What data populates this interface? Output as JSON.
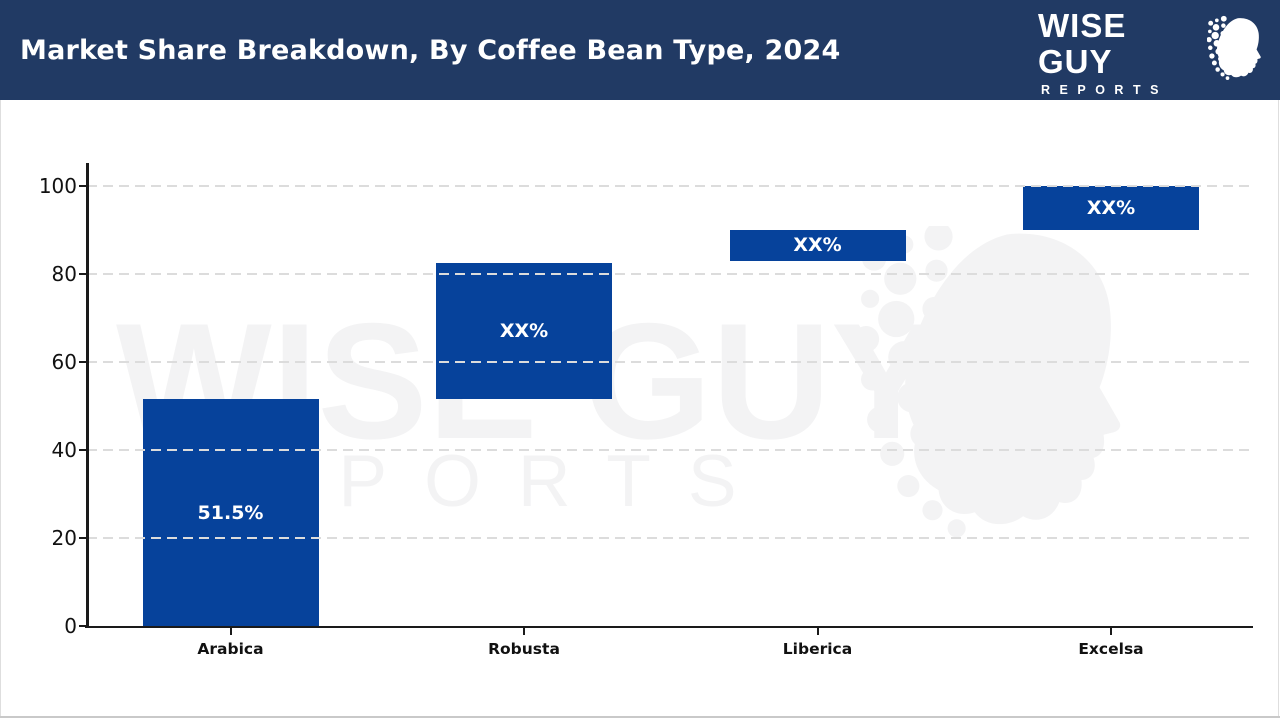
{
  "header": {
    "title": "Market Share Breakdown, By Coffee Bean Type, 2024",
    "logo_line1": "WISE GUY",
    "logo_line2": "REPORTS",
    "background_color": "#213A64"
  },
  "watermark": {
    "line1": "WISE GUY",
    "line2": "REPORTS"
  },
  "chart_data": {
    "type": "bar",
    "variant": "waterfall",
    "title": "Market Share Breakdown, By Coffee Bean Type, 2024",
    "categories": [
      "Arabica",
      "Robusta",
      "Liberica",
      "Excelsa"
    ],
    "bars": [
      {
        "category": "Arabica",
        "start": 0,
        "end": 51.5,
        "label": "51.5%"
      },
      {
        "category": "Robusta",
        "start": 51.5,
        "end": 82.5,
        "label": "XX%"
      },
      {
        "category": "Liberica",
        "start": 83,
        "end": 90,
        "label": "XX%"
      },
      {
        "category": "Excelsa",
        "start": 90,
        "end": 100,
        "label": "XX%"
      }
    ],
    "y_ticks": [
      0,
      20,
      40,
      60,
      80,
      100
    ],
    "ylim": [
      0,
      105.5
    ],
    "xlabel": "",
    "ylabel": "",
    "legend": null,
    "grid": {
      "axis": "y",
      "style": "dashed",
      "color": "#dcdcdc",
      "above_bars": true
    },
    "bar_color": "#06429B",
    "bar_label_color": "#ffffff",
    "axis_color": "#1a1a1a"
  }
}
